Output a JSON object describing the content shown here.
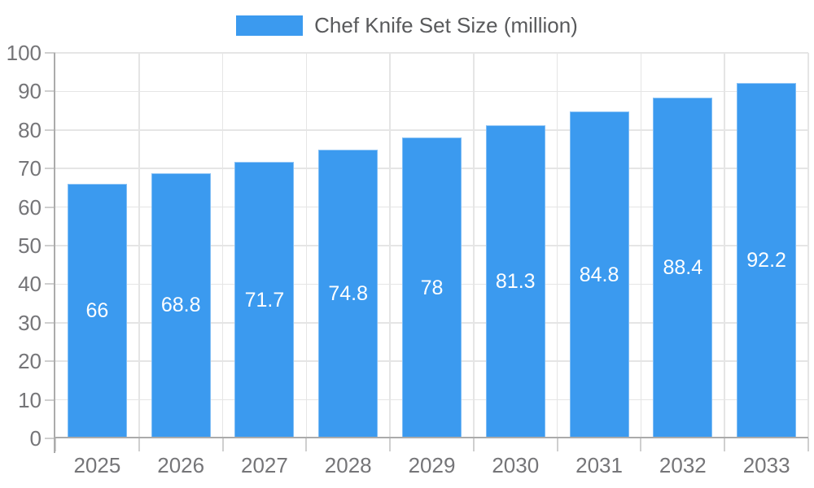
{
  "chart_data": {
    "type": "bar",
    "title": "",
    "legend_label": "Chef Knife Set Size (million)",
    "series": [
      {
        "name": "Chef Knife Set Size (million)",
        "values": [
          66,
          68.8,
          71.7,
          74.8,
          78,
          81.3,
          84.8,
          88.4,
          92.2
        ]
      }
    ],
    "categories": [
      "2025",
      "2026",
      "2027",
      "2028",
      "2029",
      "2030",
      "2031",
      "2032",
      "2033"
    ],
    "bar_value_labels": [
      "66",
      "68.8",
      "71.7",
      "74.8",
      "78",
      "81.3",
      "84.8",
      "88.4",
      "92.2"
    ],
    "ylim": [
      0,
      100
    ],
    "y_tick_step": 10,
    "y_tick_labels": [
      "0",
      "10",
      "20",
      "30",
      "40",
      "50",
      "60",
      "70",
      "80",
      "90",
      "100"
    ],
    "xlabel": "",
    "ylabel": "",
    "grid": true,
    "legend_position": "top",
    "colors": {
      "bar_fill": "#3b9aef",
      "bar_value_text": "#ffffff",
      "legend_text": "#595a5c",
      "axis_line": "#ababab",
      "grid_line": "#e5e5e5",
      "tick_line": "#cfcfcf",
      "axis_label_text": "#757578",
      "background": "#ffffff"
    }
  }
}
